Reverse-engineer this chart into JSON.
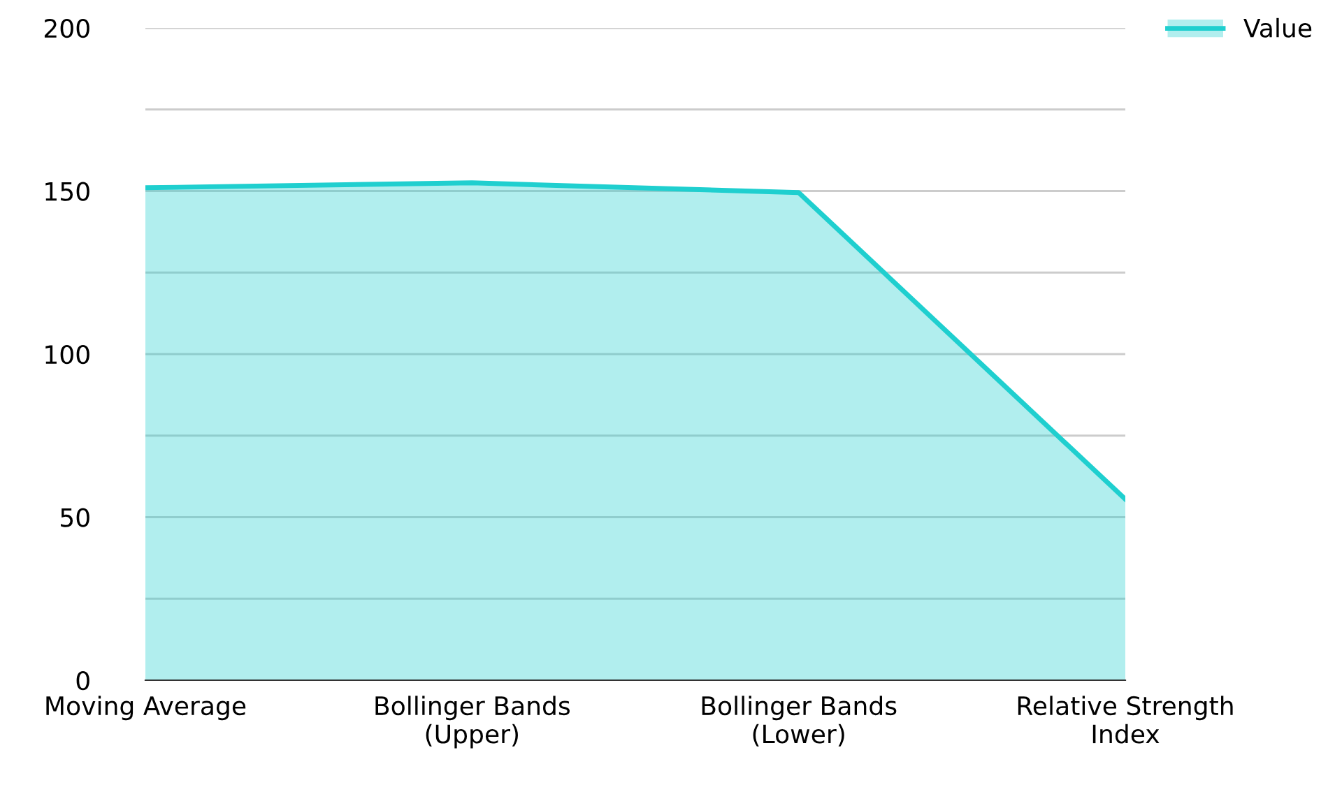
{
  "chart_data": {
    "type": "area",
    "categories": [
      "Moving Average",
      "Bollinger Bands\n(Upper)",
      "Bollinger Bands\n(Lower)",
      "Relative Strength\nIndex"
    ],
    "series": [
      {
        "name": "Value",
        "color": "#1fcfcf",
        "values": [
          151,
          152.5,
          149.5,
          55.5
        ]
      }
    ],
    "ylim": [
      0,
      200
    ],
    "yticks": [
      0,
      {
        "value": 25,
        "label": null
      },
      50,
      {
        "value": 75,
        "label": null
      },
      100,
      {
        "value": 125,
        "label": null
      },
      150,
      {
        "value": 175,
        "label": null
      },
      200
    ],
    "grid": "y",
    "legend": "top right"
  }
}
